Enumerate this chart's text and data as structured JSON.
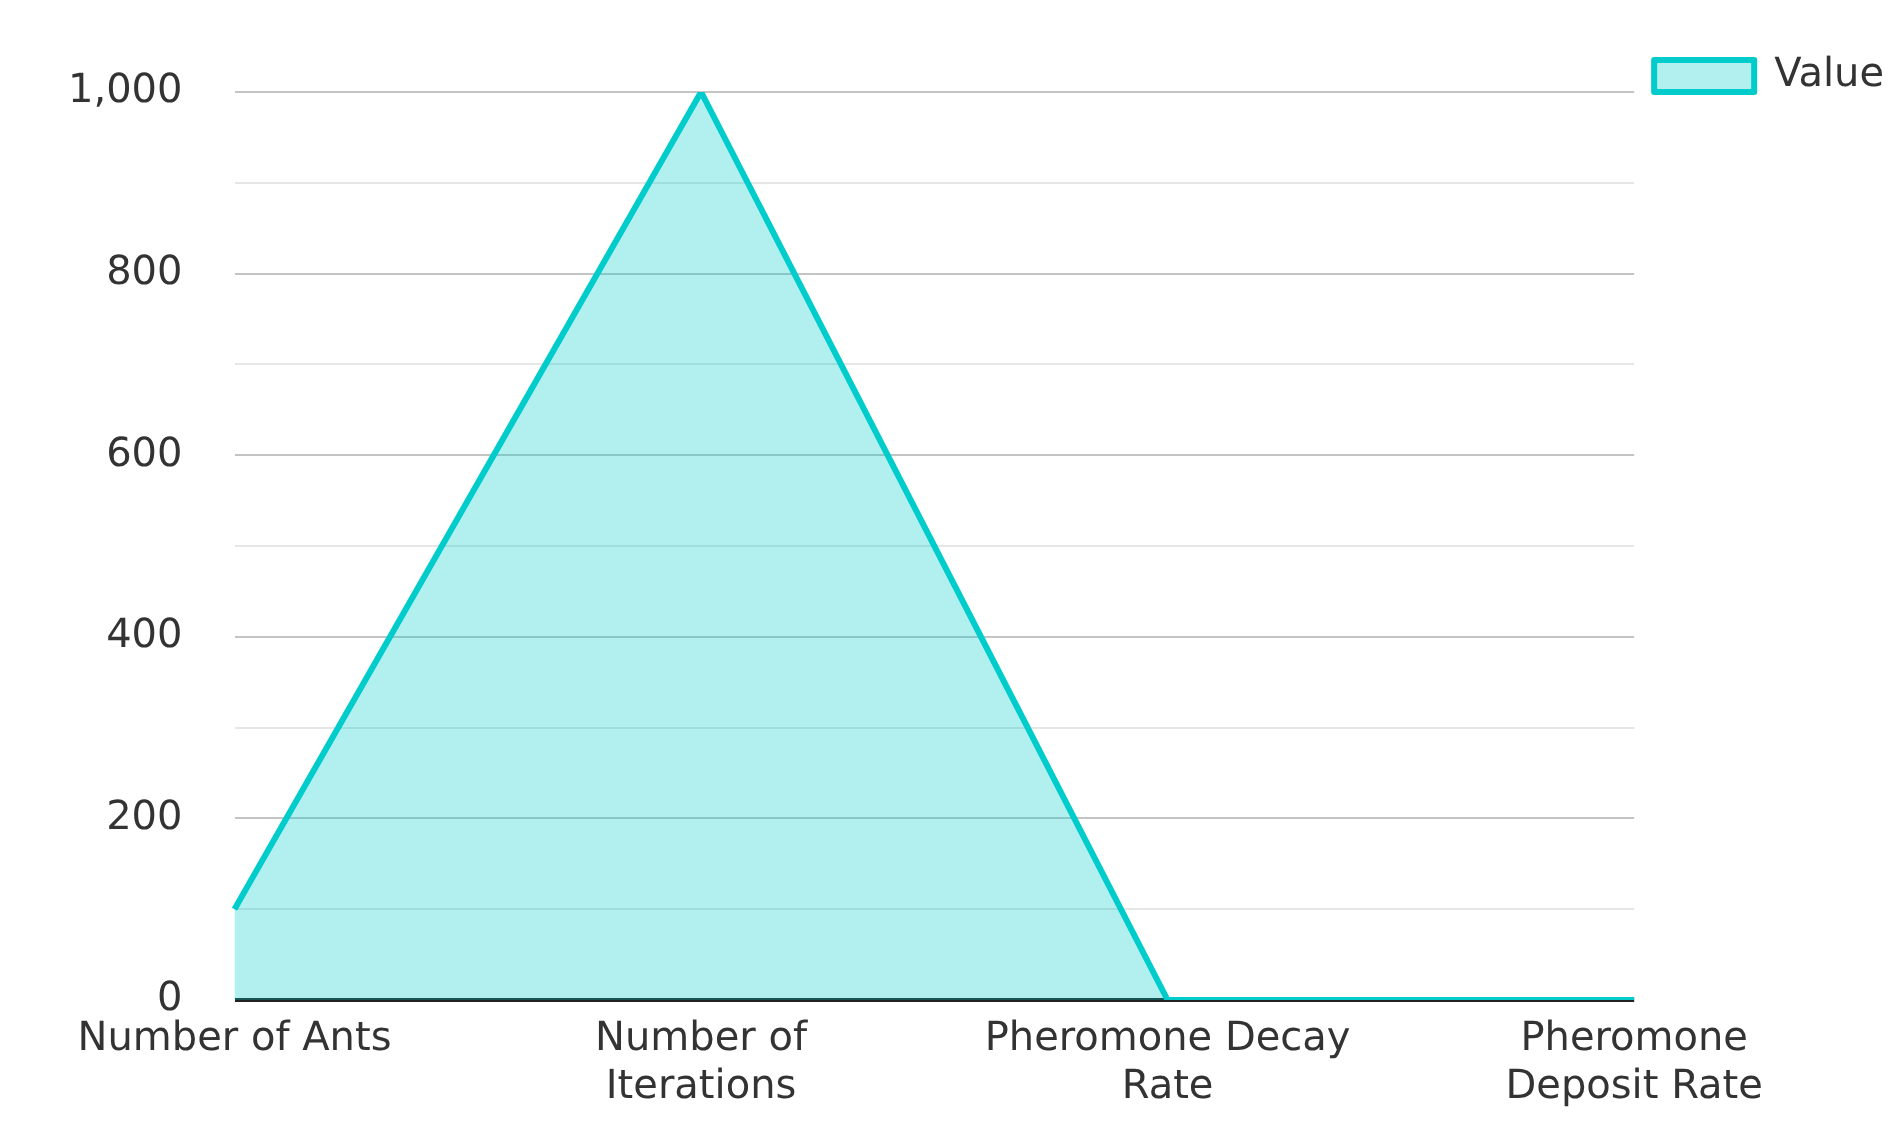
{
  "chart_data": {
    "type": "area",
    "categories": [
      "Number of Ants",
      "Number of Iterations",
      "Pheromone Decay Rate",
      "Pheromone Deposit Rate"
    ],
    "series": [
      {
        "name": "Value",
        "color": "#00cccc",
        "values": [
          100,
          1000,
          0,
          0
        ]
      }
    ],
    "ylim": [
      0,
      1000
    ],
    "yticks": [
      0,
      {
        "value": 100,
        "label": null
      },
      200,
      {
        "value": 300,
        "label": null
      },
      400,
      {
        "value": 500,
        "label": null
      },
      600,
      {
        "value": 700,
        "label": null
      },
      800,
      {
        "value": 900,
        "label": null
      },
      {
        "value": 1000,
        "label": "1,000"
      }
    ],
    "grid": "y",
    "legend": "top right",
    "marker": "none",
    "line_style": "solid"
  }
}
